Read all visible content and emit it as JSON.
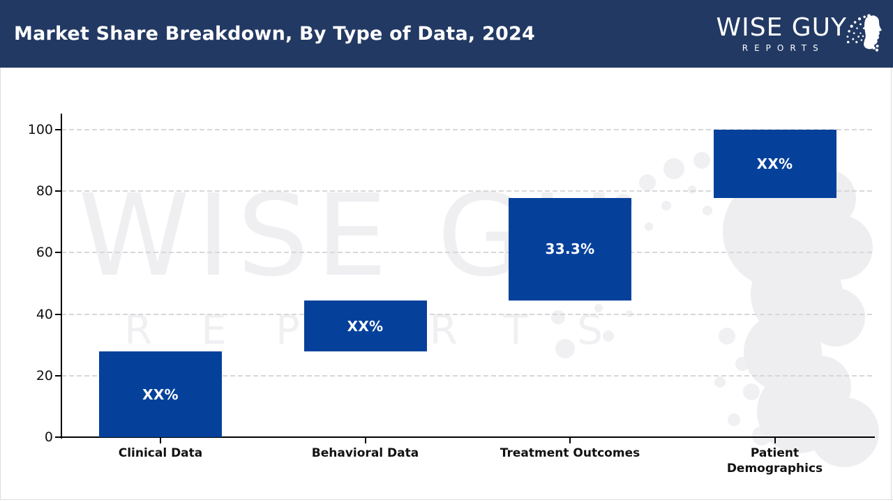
{
  "header": {
    "title": "Market Share Breakdown, By Type of Data, 2024",
    "logo": {
      "line1": "WISE GUY",
      "line2": "REPORTS"
    }
  },
  "watermark": {
    "line1": "WISE GU",
    "line2": "REPORTS"
  },
  "chart_data": {
    "type": "bar",
    "subtype": "waterfall",
    "title": "Market Share Breakdown, By Type of Data, 2024",
    "categories": [
      "Clinical Data",
      "Behavioral Data",
      "Treatment Outcomes",
      "Patient\nDemographics"
    ],
    "values": [
      27.8,
      16.7,
      33.3,
      22.2
    ],
    "starts": [
      0,
      27.8,
      44.5,
      77.8
    ],
    "ends": [
      27.8,
      44.5,
      77.8,
      100
    ],
    "bar_labels": [
      "XX%",
      "XX%",
      "33.3%",
      "XX%"
    ],
    "ylim": [
      0,
      100
    ],
    "yticks": [
      0,
      20,
      40,
      60,
      80,
      100
    ],
    "xlabel": "",
    "ylabel": "",
    "grid": "horizontal-dashed",
    "legend": "none",
    "bar_color": "#05419b",
    "bar_label_color": "#ffffff",
    "header_color": "#223963",
    "gridline_color": "#d7d7d7"
  }
}
